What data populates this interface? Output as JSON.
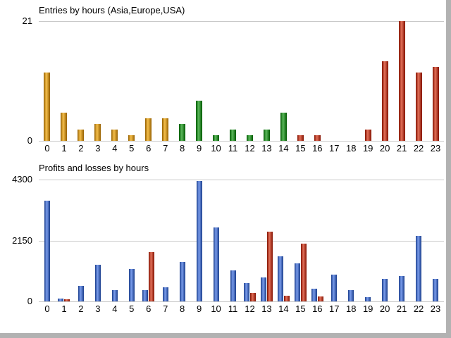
{
  "page": {
    "background_color": "#b2b2b2",
    "canvas_color": "#ffffff",
    "gridline_color": "#c9c9c9"
  },
  "chart_data": [
    {
      "type": "bar",
      "title": "Entries by hours (Asia,Europe,USA)",
      "xlabel": "",
      "ylabel": "",
      "ylim": [
        0,
        21
      ],
      "yticks": [
        0,
        21
      ],
      "grid": "horizontal",
      "legend": "none",
      "categories": [
        "0",
        "1",
        "2",
        "3",
        "4",
        "5",
        "6",
        "7",
        "8",
        "9",
        "10",
        "11",
        "12",
        "13",
        "14",
        "15",
        "16",
        "17",
        "18",
        "19",
        "20",
        "21",
        "22",
        "23"
      ],
      "series": [
        {
          "name": "Asia",
          "color": "#C8921F",
          "values": [
            12,
            5,
            2,
            3,
            2,
            1,
            4,
            4,
            0,
            0,
            0,
            0,
            0,
            0,
            0,
            0,
            0,
            0,
            0,
            0,
            0,
            0,
            0,
            0
          ]
        },
        {
          "name": "Europe",
          "color": "#2E8B2E",
          "values": [
            0,
            0,
            0,
            0,
            0,
            0,
            0,
            0,
            3,
            7,
            1,
            2,
            1,
            2,
            5,
            0,
            0,
            0,
            0,
            0,
            0,
            0,
            0,
            0
          ]
        },
        {
          "name": "USA",
          "color": "#B5432C",
          "values": [
            0,
            0,
            0,
            0,
            0,
            0,
            0,
            0,
            0,
            0,
            0,
            0,
            0,
            0,
            0,
            1,
            1,
            0,
            0,
            2,
            14,
            21,
            12,
            13
          ]
        }
      ]
    },
    {
      "type": "bar",
      "title": "Profits and losses by hours",
      "xlabel": "",
      "ylabel": "",
      "ylim": [
        0,
        4300
      ],
      "yticks": [
        0,
        2150,
        4300
      ],
      "grid": "horizontal",
      "legend": "none",
      "categories": [
        "0",
        "1",
        "2",
        "3",
        "4",
        "5",
        "6",
        "7",
        "8",
        "9",
        "10",
        "11",
        "12",
        "13",
        "14",
        "15",
        "16",
        "17",
        "18",
        "19",
        "20",
        "21",
        "22",
        "23"
      ],
      "series": [
        {
          "name": "Profit",
          "color": "#4C6FBE",
          "values": [
            3550,
            100,
            550,
            1300,
            400,
            1150,
            400,
            500,
            1400,
            4250,
            2600,
            1100,
            650,
            850,
            1600,
            1350,
            450,
            950,
            400,
            150,
            800,
            900,
            2300,
            800
          ]
        },
        {
          "name": "Loss",
          "color": "#B5432C",
          "values": [
            0,
            80,
            0,
            0,
            0,
            0,
            1750,
            0,
            0,
            0,
            0,
            0,
            300,
            2450,
            200,
            2050,
            175,
            0,
            0,
            0,
            0,
            0,
            0,
            0
          ]
        }
      ]
    }
  ]
}
